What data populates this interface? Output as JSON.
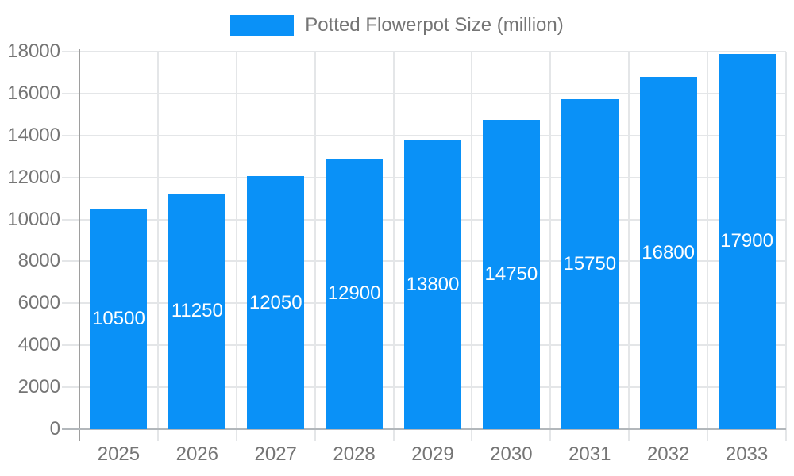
{
  "legend": {
    "label": "Potted Flowerpot Size (million)"
  },
  "chart_data": {
    "type": "bar",
    "title": "Potted Flowerpot Size (million)",
    "categories": [
      "2025",
      "2026",
      "2027",
      "2028",
      "2029",
      "2030",
      "2031",
      "2032",
      "2033"
    ],
    "values": [
      10500,
      11250,
      12050,
      12900,
      13800,
      14750,
      15750,
      16800,
      17900
    ],
    "series": [
      {
        "name": "Potted Flowerpot Size (million)",
        "values": [
          10500,
          11250,
          12050,
          12900,
          13800,
          14750,
          15750,
          16800,
          17900
        ]
      }
    ],
    "xlabel": "",
    "ylabel": "",
    "ylim": [
      0,
      18000
    ],
    "y_ticks": [
      0,
      2000,
      4000,
      6000,
      8000,
      10000,
      12000,
      14000,
      16000,
      18000
    ],
    "grid": true,
    "legend_position": "top-center",
    "value_labels_inside_bars": true,
    "colors": {
      "bar": "#0a91f7",
      "grid": "#e4e6e8",
      "y_axis": "#9e9e9e",
      "baseline": "#b2b7bb",
      "tick_text": "#757575",
      "legend_text": "#757575",
      "value_text": "#ffffff",
      "background": "#ffffff"
    }
  }
}
